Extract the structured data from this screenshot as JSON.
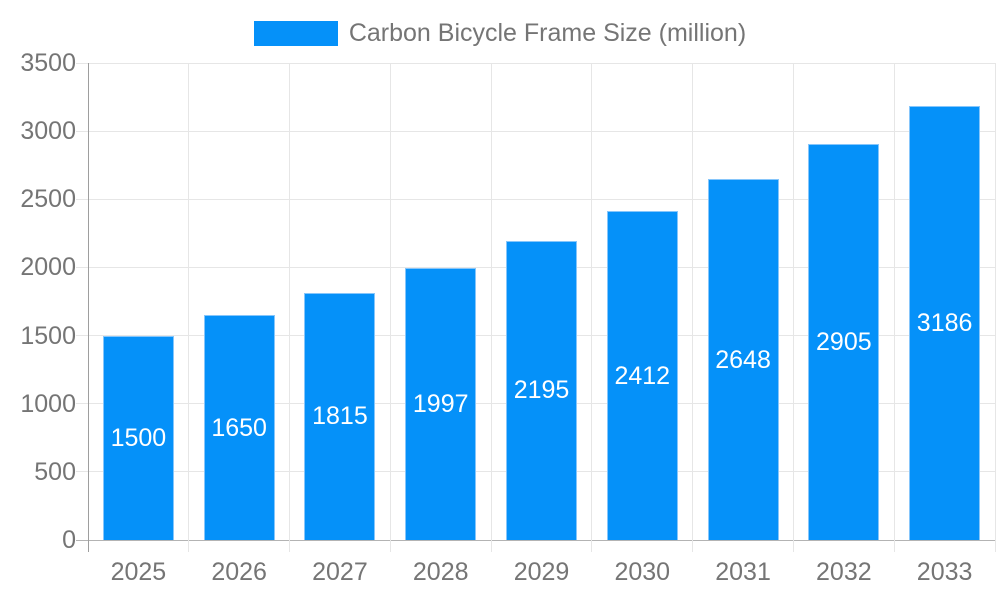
{
  "legend": {
    "label": "Carbon Bicycle Frame Size (million)"
  },
  "chart_data": {
    "type": "bar",
    "title": "Carbon Bicycle Frame Size (million)",
    "categories": [
      "2025",
      "2026",
      "2027",
      "2028",
      "2029",
      "2030",
      "2031",
      "2032",
      "2033"
    ],
    "values": [
      1500,
      1650,
      1815,
      1997,
      2195,
      2412,
      2648,
      2905,
      3186
    ],
    "xlabel": "",
    "ylabel": "",
    "ylim": [
      0,
      3500
    ],
    "yticks": [
      0,
      500,
      1000,
      1500,
      2000,
      2500,
      3000,
      3500
    ],
    "grid": true,
    "legend_position": "top",
    "colors": {
      "bar_fill": "#0591f9",
      "bar_edge": "#86c6fb",
      "bar_label": "#ffffff",
      "axis_label": "#757575",
      "gridline": "#e6e6e6",
      "axis_line": "#9e9e9e",
      "baseline": "#b3b3b3"
    }
  }
}
